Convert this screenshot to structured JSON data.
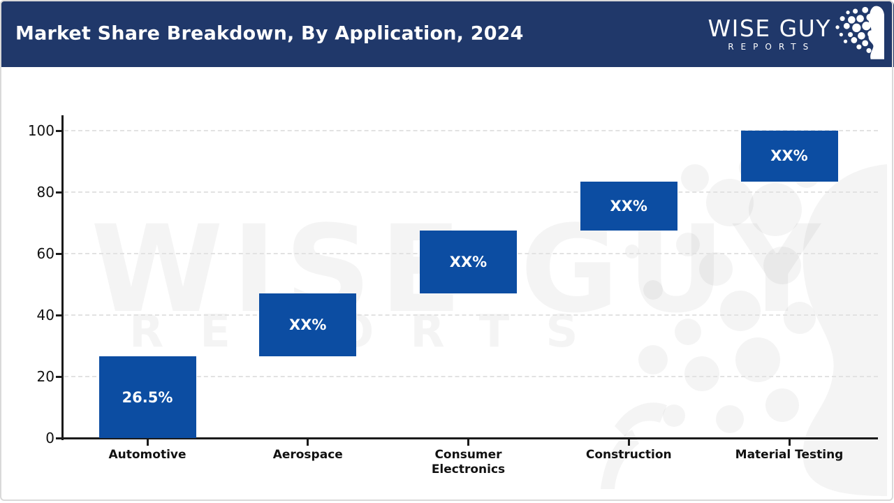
{
  "header": {
    "title": "Market Share Breakdown, By Application, 2024",
    "logo": {
      "line1": "WISE GUY",
      "line2": "REPORTS"
    }
  },
  "watermark": {
    "line1": "WISE GUY",
    "line2": "REPORTS"
  },
  "colors": {
    "header_bg": "#20386A",
    "bar_fill": "#0C4DA2",
    "grid": "#E2E2E2",
    "axis": "#1A1A1A",
    "value_label": "#FFFFFF"
  },
  "chart_data": {
    "type": "bar",
    "variant": "floating-waterfall",
    "title": "Market Share Breakdown, By Application, 2024",
    "categories": [
      "Automotive",
      "Aerospace",
      "Consumer Electronics",
      "Construction",
      "Material Testing"
    ],
    "category_lines": [
      [
        "Automotive"
      ],
      [
        "Aerospace"
      ],
      [
        "Consumer",
        "Electronics"
      ],
      [
        "Construction"
      ],
      [
        "Material Testing"
      ]
    ],
    "bars": [
      {
        "category": "Automotive",
        "start": 0,
        "end": 26.5,
        "label": "26.5%"
      },
      {
        "category": "Aerospace",
        "start": 26.5,
        "end": 47,
        "label": "XX%"
      },
      {
        "category": "Consumer Electronics",
        "start": 47,
        "end": 67.5,
        "label": "XX%"
      },
      {
        "category": "Construction",
        "start": 67.5,
        "end": 83.5,
        "label": "XX%"
      },
      {
        "category": "Material Testing",
        "start": 83.5,
        "end": 100,
        "label": "XX%"
      }
    ],
    "xlabel": "",
    "ylabel": "",
    "ylim": [
      0,
      100
    ],
    "yticks": [
      0,
      20,
      40,
      60,
      80,
      100
    ],
    "grid": "horizontal-dashed",
    "legend": "none"
  }
}
